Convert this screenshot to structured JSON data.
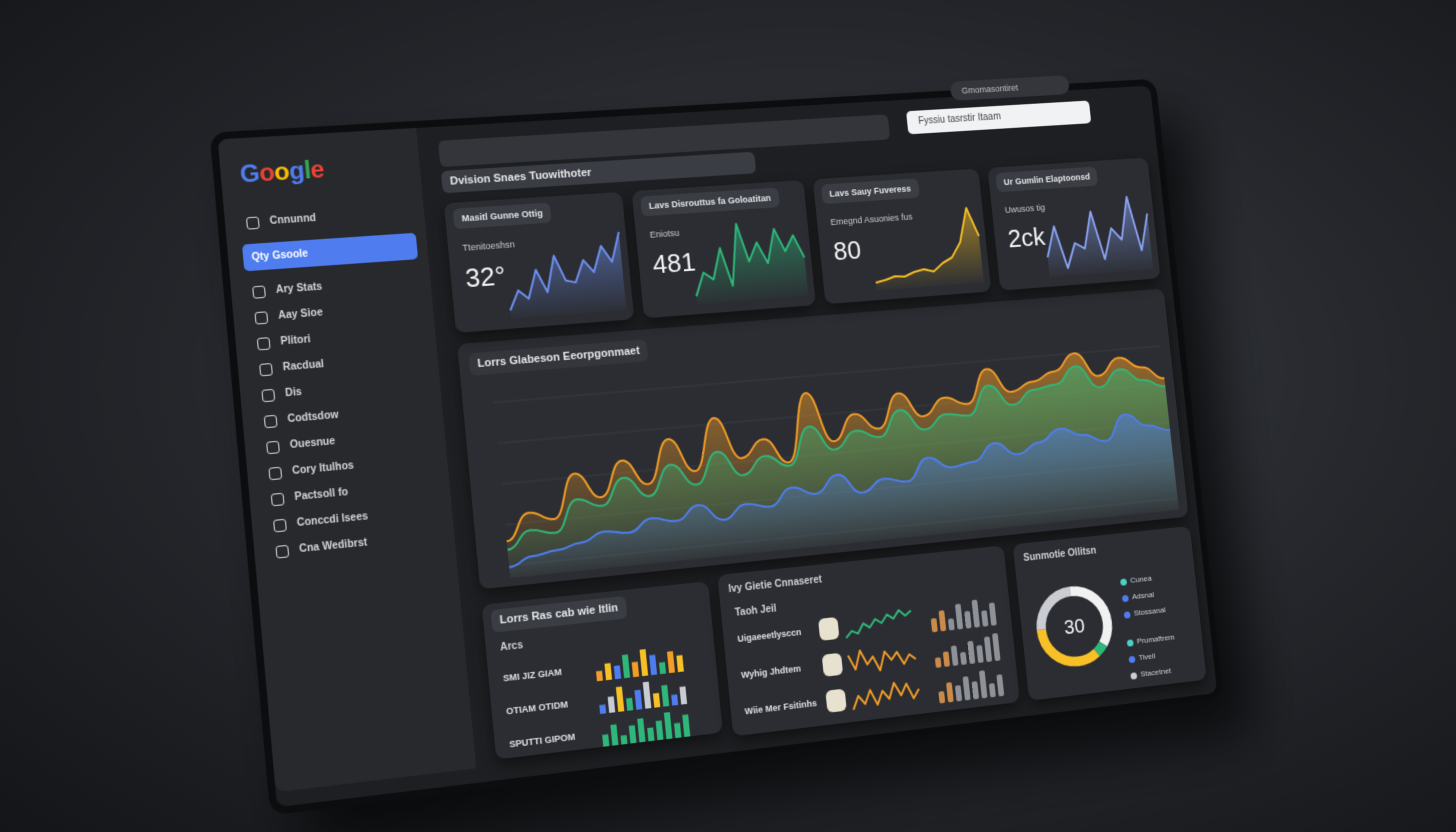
{
  "sidebar": {
    "logo": "Google",
    "active": 1,
    "items": [
      "Cnnunnd",
      "Qty Gsoole",
      "Ary Stats",
      "Aay Sioe",
      "Plitori",
      "Racdual",
      "Dis",
      "Codtsdow",
      "Ouesnue",
      "Cory Itulhos",
      "Pactsoll fo",
      "Conccdi lsees",
      "Cna Wedibrst"
    ]
  },
  "header": {
    "title": "Dvision Snaes Tuowithoter",
    "search": "Fyssiu tasrstir Itaam",
    "account": "Gmomasontiret"
  },
  "kpis": [
    {
      "title": "Masitl Gunne Ottig",
      "label": "Ttenitoeshsn",
      "value": "32°",
      "color": "#6d8ff0",
      "trend": [
        30,
        45,
        38,
        60,
        42,
        70,
        50,
        48,
        65,
        55,
        75,
        62,
        85
      ]
    },
    {
      "title": "Lavs Disrouttus fa Goloatitan",
      "label": "Eniotsu",
      "value": "481",
      "color": "#2fb67a",
      "trend": [
        40,
        55,
        50,
        70,
        45,
        85,
        60,
        72,
        58,
        80,
        65,
        75,
        60
      ]
    },
    {
      "title": "Lavs Sauy Fuveress",
      "label": "Emegnd Asuonies fus",
      "value": "80",
      "color": "#f6c026",
      "trend": [
        20,
        22,
        25,
        24,
        28,
        30,
        27,
        35,
        40,
        55,
        90,
        60
      ]
    },
    {
      "title": "Ur Gumlin Elaptoonsd",
      "label": "Uwusos tig",
      "value": "2ck",
      "color": "#8aa4f5",
      "trend": [
        50,
        75,
        40,
        60,
        55,
        85,
        45,
        70,
        60,
        95,
        50,
        80
      ]
    }
  ],
  "main_chart": {
    "type": "area",
    "title": "Lorrs Glabeson Eeorpgonmaet",
    "series": [
      {
        "color": "#f29d27",
        "values": [
          20,
          35,
          30,
          55,
          40,
          60,
          45,
          70,
          50,
          80,
          55,
          65,
          50,
          90,
          60,
          75,
          65,
          85,
          70,
          80,
          75,
          95,
          80,
          85,
          90,
          100,
          85,
          95,
          88,
          80
        ]
      },
      {
        "color": "#2fb67a",
        "values": [
          15,
          25,
          22,
          40,
          35,
          50,
          38,
          55,
          42,
          60,
          45,
          55,
          48,
          70,
          55,
          65,
          60,
          75,
          62,
          70,
          68,
          85,
          72,
          80,
          82,
          92,
          78,
          88,
          80,
          75
        ]
      },
      {
        "color": "#4f7df0",
        "values": [
          5,
          10,
          12,
          15,
          20,
          18,
          25,
          22,
          30,
          20,
          28,
          25,
          35,
          30,
          40,
          28,
          35,
          32,
          45,
          38,
          40,
          50,
          42,
          48,
          55,
          50,
          45,
          60,
          52,
          48
        ]
      }
    ]
  },
  "regions": {
    "title": "Lorrs Ras cab wie Itlin",
    "label": "Arcs",
    "rows": [
      {
        "label": "SMI JIZ GIAM",
        "colors": [
          "#f29d27",
          "#f6c026",
          "#4f7df0",
          "#2fb67a"
        ],
        "bars": [
          6,
          10,
          8,
          14,
          9,
          16,
          12,
          7,
          13,
          10
        ]
      },
      {
        "label": "OTIAM OTIDM",
        "colors": [
          "#4f7df0",
          "#c9ccd2",
          "#f6c026",
          "#2fb67a"
        ],
        "bars": [
          5,
          9,
          14,
          7,
          11,
          15,
          8,
          12,
          6,
          10
        ]
      },
      {
        "label": "SPUTTI GIPOM",
        "colors": [
          "#2fb67a"
        ],
        "bars": [
          8,
          14,
          6,
          12,
          16,
          9,
          13,
          18,
          10,
          15
        ]
      }
    ]
  },
  "products": {
    "title": "Ivy Gietie Cnnaseret",
    "label": "Taoh Jeil",
    "rows": [
      {
        "label": "Uigaeeetlysccn",
        "color": "#2fb67a",
        "trend": [
          10,
          14,
          12,
          18,
          15,
          20,
          17,
          22,
          19,
          24,
          20,
          23
        ],
        "bars": [
          12,
          18,
          10,
          22,
          15,
          24,
          14,
          20
        ]
      },
      {
        "label": "Wyhig Jhdtem",
        "color": "#f29d27",
        "trend": [
          20,
          12,
          22,
          14,
          18,
          10,
          20,
          15,
          19,
          12,
          17,
          14
        ],
        "bars": [
          8,
          12,
          16,
          10,
          18,
          14,
          20,
          22
        ]
      },
      {
        "label": "Wiie Mer Fsitinhs",
        "color": "#f29d27",
        "trend": [
          12,
          18,
          14,
          20,
          13,
          19,
          15,
          22,
          16,
          21,
          14,
          18
        ],
        "bars": [
          6,
          10,
          8,
          12,
          9,
          14,
          7,
          11
        ]
      }
    ]
  },
  "donut": {
    "title": "Sunmotie Ollitsn",
    "center": "30",
    "segments": [
      {
        "color": "#f1f1f1",
        "value": 35
      },
      {
        "color": "#2fb67a",
        "value": 5
      },
      {
        "color": "#f6c026",
        "value": 35
      },
      {
        "color": "#c9ccd2",
        "value": 25
      }
    ],
    "legend": [
      {
        "label": "Cunea",
        "color": "#4ed1c5"
      },
      {
        "label": "Adsnal",
        "color": "#4f7df0"
      },
      {
        "label": "Stossanal",
        "color": "#4f7df0"
      },
      {
        "label": "Prumaftrem",
        "color": "#4ed1c5"
      },
      {
        "label": "Tivell",
        "color": "#4f7df0"
      },
      {
        "label": "Stacetnet",
        "color": "#c9ccd2"
      }
    ]
  }
}
